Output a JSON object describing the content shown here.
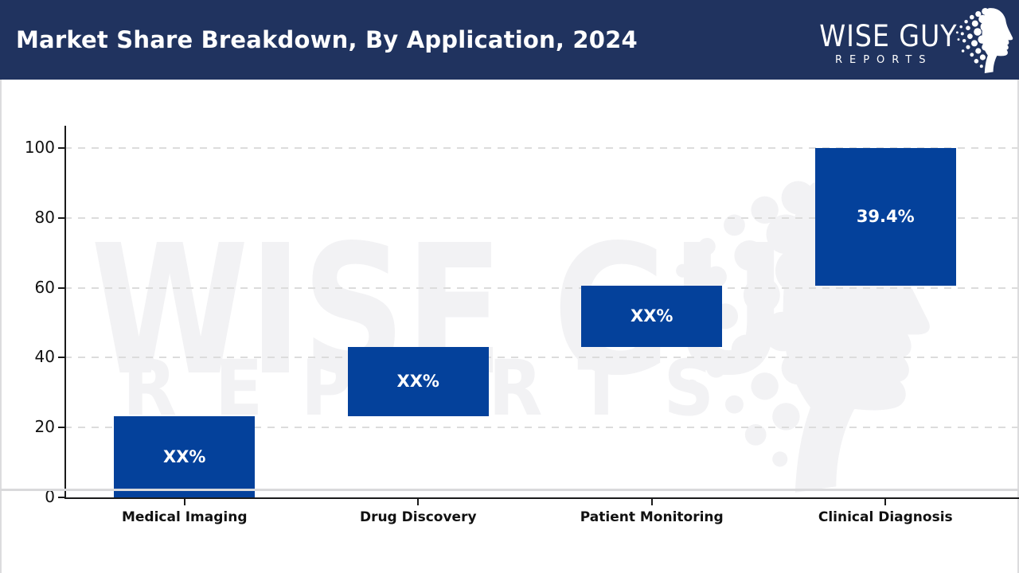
{
  "header": {
    "title": "Market Share Breakdown, By Application, 2024",
    "background_color": "#20335f",
    "logo": {
      "name": "Wise Guy Reports",
      "line1": "WISE GUY",
      "line2": "REPORTS"
    }
  },
  "watermark": {
    "line1": "WISE GUY",
    "line2": "REPORTS"
  },
  "chart_data": {
    "type": "bar",
    "subtype": "floating-waterfall",
    "title": "Market Share Breakdown, By Application, 2024",
    "categories": [
      "Medical Imaging",
      "Drug Discovery",
      "Patient Monitoring",
      "Clinical Diagnosis"
    ],
    "series": [
      {
        "name": "Market share (%)",
        "segments": [
          {
            "category": "Medical Imaging",
            "start": 0,
            "end": 23.2,
            "label": "XX%"
          },
          {
            "category": "Drug Discovery",
            "start": 23.2,
            "end": 43.1,
            "label": "XX%"
          },
          {
            "category": "Patient Monitoring",
            "start": 43.1,
            "end": 60.6,
            "label": "XX%"
          },
          {
            "category": "Clinical Diagnosis",
            "start": 60.6,
            "end": 100,
            "label": "39.4%"
          }
        ]
      }
    ],
    "xlabel": "",
    "ylabel": "",
    "ylim": [
      0,
      100
    ],
    "yticks": [
      0,
      20,
      40,
      60,
      80,
      100
    ],
    "grid": "horizontal-dashed",
    "legend": "none",
    "colors": {
      "bar": "#04419b",
      "bar_label": "#ffffff",
      "grid": "#dcdcdc",
      "axis": "#1a1a1a",
      "tick_label": "#111111"
    }
  }
}
